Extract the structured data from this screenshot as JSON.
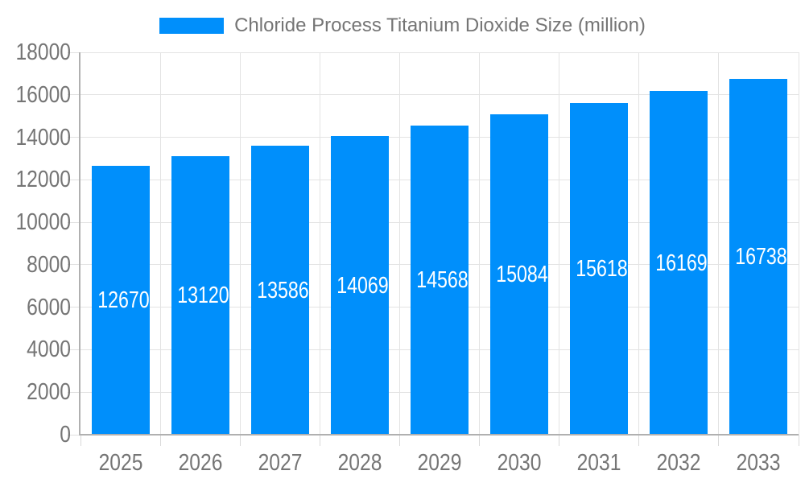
{
  "legend": {
    "label": "Chloride Process Titanium Dioxide Size (million)"
  },
  "chart_data": {
    "type": "bar",
    "title": "Chloride Process Titanium Dioxide Size (million)",
    "series_name": "Chloride Process Titanium Dioxide Size (million)",
    "categories": [
      "2025",
      "2026",
      "2027",
      "2028",
      "2029",
      "2030",
      "2031",
      "2032",
      "2033"
    ],
    "values": [
      12670,
      13120,
      13586,
      14069,
      14568,
      15084,
      15618,
      16169,
      16738
    ],
    "xlabel": "",
    "ylabel": "",
    "ylim": [
      0,
      18000
    ],
    "y_tick_step": 2000,
    "y_ticks": [
      0,
      2000,
      4000,
      6000,
      8000,
      10000,
      12000,
      14000,
      16000,
      18000
    ],
    "grid": true,
    "legend_position": "top",
    "value_labels": "inside-center",
    "colors": {
      "bar": "#008FFB",
      "value_label_text": "#ffffff",
      "axis_text": "#757575",
      "legend_text": "#757575",
      "gridline": "#e3e3e3",
      "axis_line": "#b0b0b0",
      "background": "#ffffff"
    }
  }
}
